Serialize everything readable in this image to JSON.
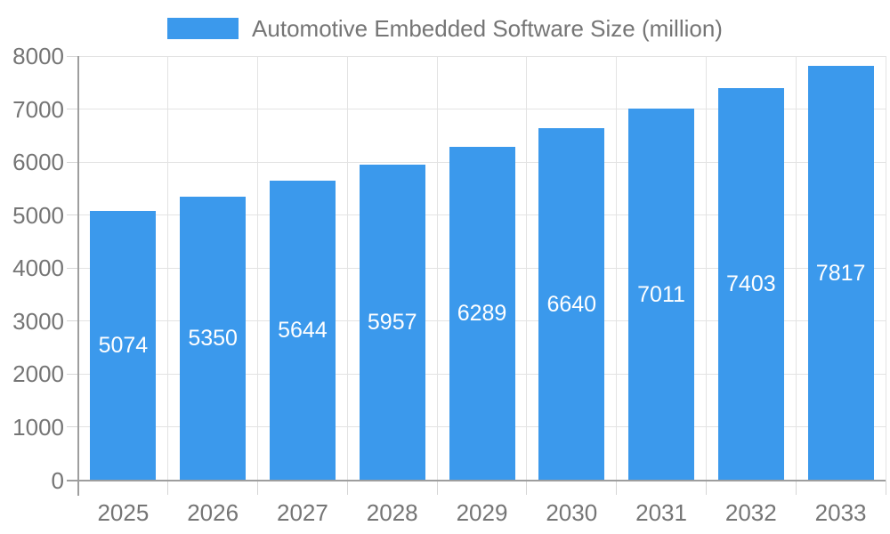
{
  "chart_data": {
    "type": "bar",
    "title": "Automotive Embedded Software Size (million)",
    "categories": [
      "2025",
      "2026",
      "2027",
      "2028",
      "2029",
      "2030",
      "2031",
      "2032",
      "2033"
    ],
    "values": [
      5074,
      5350,
      5644,
      5957,
      6289,
      6640,
      7011,
      7403,
      7817
    ],
    "xlabel": "",
    "ylabel": "",
    "ylim": [
      0,
      8000
    ],
    "ytick_step": 1000,
    "grid": "on",
    "legend_position": "top-center",
    "bar_labels_visible": true
  },
  "colors": {
    "bar": "#3B99EC",
    "axis_text": "#757575",
    "gridline": "#E3E3E3",
    "axis_line": "#9E9E9E",
    "minor_tick": "#D6D6D6",
    "bar_value_text": "#FFFFFF",
    "background": "#FFFFFF"
  }
}
